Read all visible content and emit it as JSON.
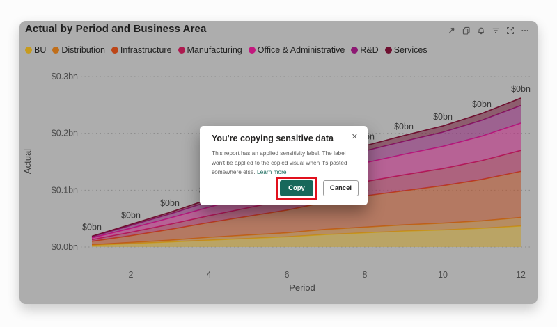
{
  "card": {
    "title": "Actual by Period and Business Area",
    "bg_color": "#ADADAD",
    "header_icons": [
      "pin-icon",
      "copy-visual-icon",
      "alert-icon",
      "filter-icon",
      "focus-mode-icon",
      "more-options-icon"
    ]
  },
  "chart_data": {
    "type": "area",
    "stacked": true,
    "title": "Actual by Period and Business Area",
    "xlabel": "Period",
    "ylabel": "Actual",
    "x": [
      1,
      2,
      3,
      4,
      5,
      6,
      7,
      8,
      9,
      10,
      11,
      12
    ],
    "x_ticks": [
      2,
      4,
      6,
      8,
      10,
      12
    ],
    "y_ticks": [
      {
        "label": "$0.0bn",
        "value": 0.0
      },
      {
        "label": "$0.1bn",
        "value": 0.1
      },
      {
        "label": "$0.2bn",
        "value": 0.2
      },
      {
        "label": "$0.3bn",
        "value": 0.3
      }
    ],
    "ylim": [
      0,
      0.3
    ],
    "value_unit": "$bn",
    "grid": "dotted",
    "legend_position": "top",
    "point_label": "$0bn",
    "series": [
      {
        "name": "BU",
        "color": "#C79B1E",
        "values": [
          0.003,
          0.006,
          0.009,
          0.012,
          0.015,
          0.018,
          0.022,
          0.025,
          0.028,
          0.03,
          0.033,
          0.037
        ]
      },
      {
        "name": "Distribution",
        "color": "#C06E1A",
        "values": [
          0.001,
          0.002,
          0.003,
          0.005,
          0.006,
          0.007,
          0.009,
          0.01,
          0.011,
          0.012,
          0.013,
          0.015
        ]
      },
      {
        "name": "Infrastructure",
        "color": "#BC4517",
        "values": [
          0.006,
          0.012,
          0.019,
          0.026,
          0.033,
          0.04,
          0.048,
          0.055,
          0.06,
          0.066,
          0.073,
          0.081
        ]
      },
      {
        "name": "Manufacturing",
        "color": "#AD1A4F",
        "values": [
          0.003,
          0.006,
          0.009,
          0.012,
          0.015,
          0.018,
          0.022,
          0.025,
          0.028,
          0.03,
          0.033,
          0.037
        ]
      },
      {
        "name": "Office & Administrative",
        "color": "#C2187E",
        "values": [
          0.003,
          0.007,
          0.011,
          0.015,
          0.02,
          0.024,
          0.028,
          0.033,
          0.036,
          0.039,
          0.043,
          0.048
        ]
      },
      {
        "name": "R&D",
        "color": "#8D1873",
        "values": [
          0.002,
          0.005,
          0.007,
          0.01,
          0.013,
          0.015,
          0.018,
          0.021,
          0.023,
          0.025,
          0.028,
          0.031
        ]
      },
      {
        "name": "Services",
        "color": "#6E1030",
        "values": [
          0.001,
          0.002,
          0.003,
          0.004,
          0.005,
          0.007,
          0.008,
          0.009,
          0.01,
          0.011,
          0.012,
          0.013
        ]
      }
    ]
  },
  "dialog": {
    "title": "You're copying sensitive data",
    "close_icon": "✕",
    "body_before_link": "This report has an applied sensitivity label. The label won't be applied to the copied visual when it's pasted somewhere else.",
    "link_label": "Learn more",
    "buttons": {
      "copy": "Copy",
      "cancel": "Cancel"
    },
    "accent_color": "#17685B",
    "highlight_color": "#E1101D"
  }
}
